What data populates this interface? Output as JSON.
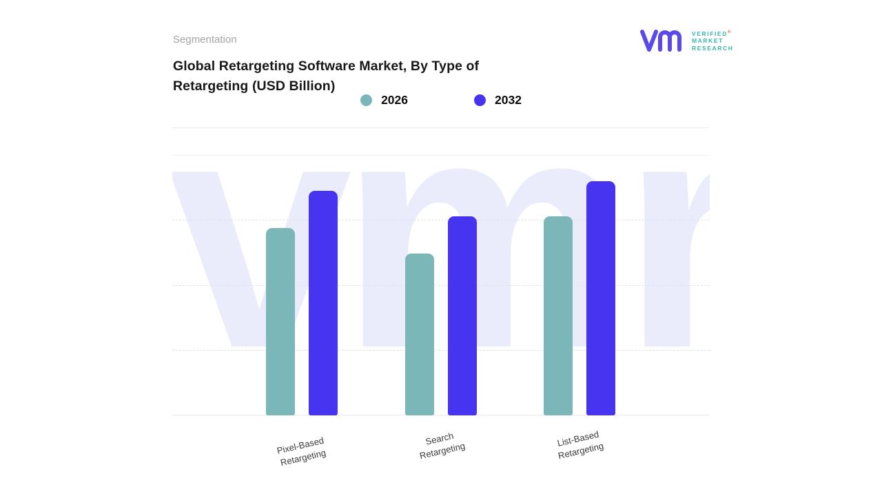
{
  "header": {
    "eyebrow": "Segmentation",
    "title_line1": "Global Retargeting Software Market, By Type of",
    "title_line2": "Retargeting (USD Billion)"
  },
  "logo": {
    "lines": [
      "VERIFIED",
      "MARKET",
      "RESEARCH"
    ],
    "registered_mark": "®",
    "glyph_color": "#5b49ea",
    "text_color": "#35b4aa"
  },
  "legend": {
    "items": [
      {
        "label": "2026",
        "color": "#7bb6b9"
      },
      {
        "label": "2032",
        "color": "#4634f1"
      }
    ]
  },
  "watermark": {
    "text": "vmr",
    "color": "#eaecfb"
  },
  "chart_data": {
    "type": "bar",
    "title": "Global Retargeting Software Market, By Type of Retargeting (USD Billion)",
    "categories": [
      "Pixel-Based Retargeting",
      "Search Retargeting",
      "List-Based Retargeting"
    ],
    "series": [
      {
        "name": "2026",
        "color": "#7bb6b9",
        "values": [
          80,
          69,
          85
        ]
      },
      {
        "name": "2032",
        "color": "#4634f1",
        "values": [
          96,
          85,
          100
        ]
      }
    ],
    "xlabel": "",
    "ylabel": "",
    "ylim": [
      0,
      100
    ],
    "value_axis_visible": false,
    "grid": "horizontal-dashed",
    "legend_position": "top-center"
  }
}
